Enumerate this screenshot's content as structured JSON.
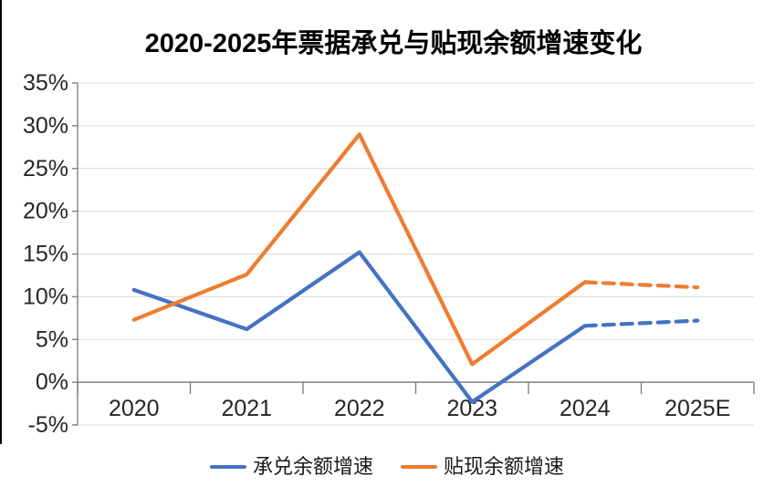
{
  "title": "2020-2025年票据承兑与贴现余额增速变化",
  "legend": {
    "items": [
      {
        "label": "承兑余额增速",
        "color": "#4472C4"
      },
      {
        "label": "贴现余额增速",
        "color": "#ED7D31"
      }
    ]
  },
  "chart_data": {
    "type": "line",
    "title": "2020-2025年票据承兑与贴现余额增速变化",
    "categories": [
      "2020",
      "2021",
      "2022",
      "2023",
      "2024",
      "2025E"
    ],
    "series": [
      {
        "name": "承兑余额增速",
        "color": "#4472C4",
        "values": [
          10.8,
          6.2,
          15.2,
          -2.3,
          6.6,
          7.2
        ],
        "forecast_dashed_from_index": 4
      },
      {
        "name": "贴现余额增速",
        "color": "#ED7D31",
        "values": [
          7.3,
          12.6,
          29.0,
          2.1,
          11.7,
          11.1
        ],
        "forecast_dashed_from_index": 4
      }
    ],
    "ylim": [
      -5,
      35
    ],
    "ytick_step": 5,
    "ytick_labels": [
      "35%",
      "30%",
      "25%",
      "20%",
      "15%",
      "10%",
      "5%",
      "0%",
      "-5%"
    ],
    "xlabel": "",
    "ylabel": "",
    "grid": true,
    "legend_position": "bottom",
    "colors": {
      "gridline": "#D9D9D9",
      "axis": "#808080",
      "tick_label": "#262626",
      "background": "#FFFFFF",
      "left_border": "#000000"
    }
  }
}
